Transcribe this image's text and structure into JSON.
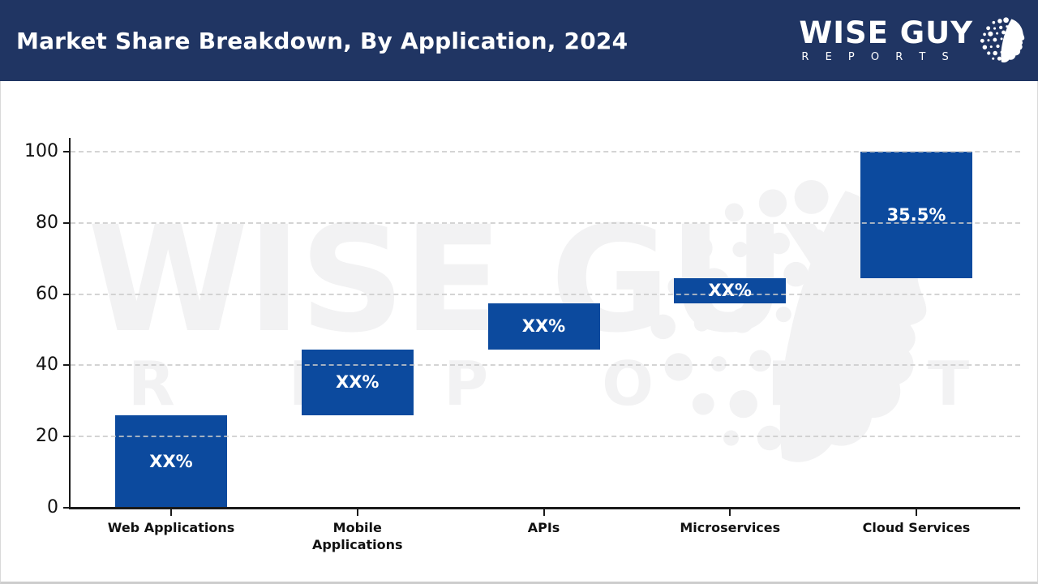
{
  "header": {
    "title": "Market Share Breakdown, By Application, 2024",
    "logo": {
      "name_top": "WISE GUY",
      "name_bottom": "R E P O R T S"
    }
  },
  "watermark": {
    "text_top": "WISE GUY",
    "text_bottom": "R E P O R T S"
  },
  "chart_data": {
    "type": "bar",
    "variant": "waterfall",
    "title": "Market Share Breakdown, By Application, 2024",
    "categories": [
      "Web Applications",
      "Mobile\nApplications",
      "APIs",
      "Microservices",
      "Cloud Services"
    ],
    "bars": [
      {
        "category": "Web Applications",
        "start": 0,
        "end": 26,
        "height": 26,
        "label": "XX%"
      },
      {
        "category": "Mobile\nApplications",
        "start": 26,
        "end": 44.5,
        "height": 18.5,
        "label": "XX%"
      },
      {
        "category": "APIs",
        "start": 44.5,
        "end": 57.5,
        "height": 13,
        "label": "XX%"
      },
      {
        "category": "Microservices",
        "start": 57.5,
        "end": 64.5,
        "height": 7,
        "label": "XX%"
      },
      {
        "category": "Cloud Services",
        "start": 64.5,
        "end": 100,
        "height": 35.5,
        "label": "35.5%"
      }
    ],
    "yticks": [
      0,
      20,
      40,
      60,
      80,
      100
    ],
    "ylim": [
      0,
      104
    ],
    "xlabel": "",
    "ylabel": "",
    "grid": "horizontal-dashed",
    "legend": "none",
    "bar_color": "#0C4A9E"
  },
  "colors": {
    "header_bg": "#203563",
    "bar": "#0C4A9E",
    "grid": "#c9c9c9",
    "axis": "#1a1a1a",
    "watermark": "#f2f2f3",
    "bar_label": "#ffffff"
  }
}
